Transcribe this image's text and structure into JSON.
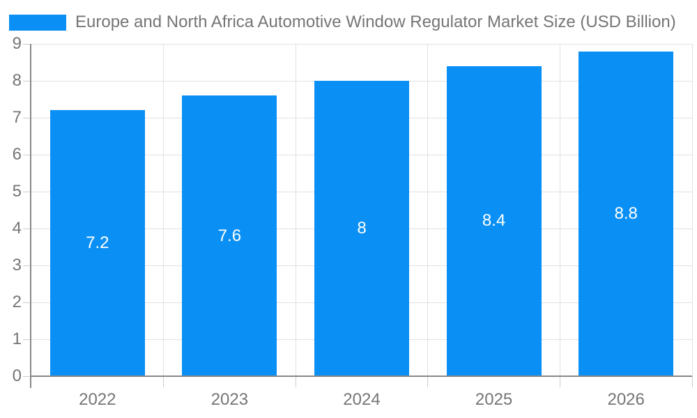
{
  "chart_data": {
    "type": "bar",
    "title": "Europe and North Africa Automotive Window Regulator Market Size (USD Billion)",
    "categories": [
      "2022",
      "2023",
      "2024",
      "2025",
      "2026"
    ],
    "values": [
      7.2,
      7.6,
      8,
      8.4,
      8.8
    ],
    "bar_labels": [
      "7.2",
      "7.6",
      "8",
      "8.4",
      "8.8"
    ],
    "xlabel": "",
    "ylabel": "",
    "ylim": [
      0,
      9
    ],
    "yticks": [
      0,
      1,
      2,
      3,
      4,
      5,
      6,
      7,
      8,
      9
    ],
    "grid": true,
    "legend_position": "top-left"
  },
  "legend": {
    "label": "Europe and North Africa Automotive Window Regulator Market Size (USD Billion)"
  },
  "colors": {
    "bar": "#0A90F5",
    "bar_label_text": "#FFFFFF",
    "grid": "#E1E1E1",
    "tick": "#CCCCCC",
    "axis": "#888888",
    "text": "#757575",
    "background": "#FFFFFF"
  }
}
